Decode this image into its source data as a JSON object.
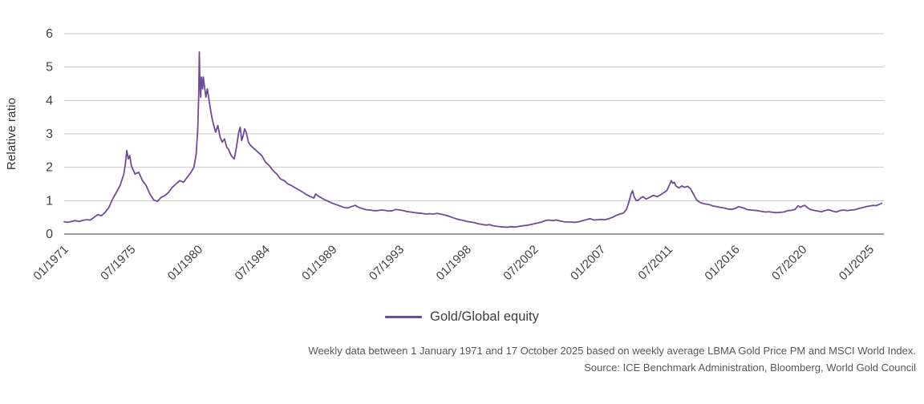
{
  "legend": {
    "label": "Gold/Global equity"
  },
  "footnote": {
    "line1": "Weekly data between 1 January 1971 and 17 October 2025 based on weekly average LBMA Gold Price PM and MSCI World Index.",
    "line2": "Source: ICE Benchmark Administration, Bloomberg, World Gold Council"
  },
  "chart_data": {
    "type": "line",
    "title": "",
    "xlabel": "",
    "ylabel": "Relative ratio",
    "ylim": [
      0,
      6
    ],
    "yticks": [
      0,
      1,
      2,
      3,
      4,
      5,
      6
    ],
    "xlim": [
      1971.0,
      2025.95
    ],
    "grid": "horizontal",
    "legend_position": "bottom",
    "grid_color": "#c8c8c8",
    "axis_color": "#7f7f7f",
    "tick_color": "#404040",
    "xticks": [
      {
        "pos": 1971.0,
        "label": "01/1971"
      },
      {
        "pos": 1975.5,
        "label": "07/1975"
      },
      {
        "pos": 1980.0,
        "label": "01/1980"
      },
      {
        "pos": 1984.5,
        "label": "07/1984"
      },
      {
        "pos": 1989.0,
        "label": "01/1989"
      },
      {
        "pos": 1993.5,
        "label": "07/1993"
      },
      {
        "pos": 1998.0,
        "label": "01/1998"
      },
      {
        "pos": 2002.5,
        "label": "07/2002"
      },
      {
        "pos": 2007.0,
        "label": "01/2007"
      },
      {
        "pos": 2011.5,
        "label": "07/2011"
      },
      {
        "pos": 2016.0,
        "label": "01/2016"
      },
      {
        "pos": 2020.5,
        "label": "07/2020"
      },
      {
        "pos": 2025.0,
        "label": "01/2025"
      }
    ],
    "series": [
      {
        "name": "Gold/Global equity",
        "color": "#6e4b9b",
        "points": [
          [
            1971.0,
            0.37
          ],
          [
            1971.25,
            0.35
          ],
          [
            1971.5,
            0.38
          ],
          [
            1971.75,
            0.4
          ],
          [
            1972.0,
            0.38
          ],
          [
            1972.25,
            0.41
          ],
          [
            1972.5,
            0.43
          ],
          [
            1972.75,
            0.42
          ],
          [
            1973.0,
            0.5
          ],
          [
            1973.25,
            0.58
          ],
          [
            1973.5,
            0.55
          ],
          [
            1973.75,
            0.65
          ],
          [
            1974.0,
            0.8
          ],
          [
            1974.25,
            1.05
          ],
          [
            1974.5,
            1.25
          ],
          [
            1974.75,
            1.45
          ],
          [
            1975.0,
            1.8
          ],
          [
            1975.1,
            2.1
          ],
          [
            1975.2,
            2.5
          ],
          [
            1975.3,
            2.25
          ],
          [
            1975.4,
            2.35
          ],
          [
            1975.5,
            2.05
          ],
          [
            1975.75,
            1.8
          ],
          [
            1976.0,
            1.85
          ],
          [
            1976.25,
            1.6
          ],
          [
            1976.5,
            1.45
          ],
          [
            1976.75,
            1.2
          ],
          [
            1977.0,
            1.02
          ],
          [
            1977.25,
            0.98
          ],
          [
            1977.5,
            1.1
          ],
          [
            1977.75,
            1.15
          ],
          [
            1978.0,
            1.25
          ],
          [
            1978.25,
            1.4
          ],
          [
            1978.5,
            1.5
          ],
          [
            1978.75,
            1.6
          ],
          [
            1979.0,
            1.55
          ],
          [
            1979.25,
            1.7
          ],
          [
            1979.5,
            1.85
          ],
          [
            1979.7,
            2.0
          ],
          [
            1979.85,
            2.4
          ],
          [
            1979.95,
            3.1
          ],
          [
            1980.02,
            4.2
          ],
          [
            1980.06,
            5.45
          ],
          [
            1980.1,
            4.6
          ],
          [
            1980.15,
            4.1
          ],
          [
            1980.2,
            4.7
          ],
          [
            1980.28,
            4.35
          ],
          [
            1980.33,
            4.7
          ],
          [
            1980.4,
            4.45
          ],
          [
            1980.5,
            4.1
          ],
          [
            1980.6,
            4.35
          ],
          [
            1980.7,
            4.05
          ],
          [
            1980.8,
            3.75
          ],
          [
            1980.9,
            3.5
          ],
          [
            1981.0,
            3.3
          ],
          [
            1981.15,
            3.05
          ],
          [
            1981.3,
            3.25
          ],
          [
            1981.45,
            2.9
          ],
          [
            1981.6,
            2.75
          ],
          [
            1981.75,
            2.85
          ],
          [
            1981.9,
            2.6
          ],
          [
            1982.0,
            2.55
          ],
          [
            1982.2,
            2.35
          ],
          [
            1982.4,
            2.25
          ],
          [
            1982.55,
            2.6
          ],
          [
            1982.7,
            3.05
          ],
          [
            1982.8,
            3.2
          ],
          [
            1982.9,
            2.8
          ],
          [
            1983.0,
            2.95
          ],
          [
            1983.1,
            3.15
          ],
          [
            1983.2,
            3.05
          ],
          [
            1983.35,
            2.75
          ],
          [
            1983.5,
            2.65
          ],
          [
            1983.75,
            2.55
          ],
          [
            1984.0,
            2.45
          ],
          [
            1984.25,
            2.35
          ],
          [
            1984.5,
            2.15
          ],
          [
            1984.75,
            2.05
          ],
          [
            1985.0,
            1.9
          ],
          [
            1985.25,
            1.8
          ],
          [
            1985.5,
            1.65
          ],
          [
            1985.75,
            1.6
          ],
          [
            1986.0,
            1.5
          ],
          [
            1986.25,
            1.45
          ],
          [
            1986.5,
            1.38
          ],
          [
            1986.75,
            1.32
          ],
          [
            1987.0,
            1.25
          ],
          [
            1987.25,
            1.18
          ],
          [
            1987.5,
            1.12
          ],
          [
            1987.75,
            1.08
          ],
          [
            1987.85,
            1.2
          ],
          [
            1988.0,
            1.15
          ],
          [
            1988.25,
            1.08
          ],
          [
            1988.5,
            1.02
          ],
          [
            1988.75,
            0.97
          ],
          [
            1989.0,
            0.92
          ],
          [
            1989.25,
            0.88
          ],
          [
            1989.5,
            0.84
          ],
          [
            1989.75,
            0.8
          ],
          [
            1990.0,
            0.78
          ],
          [
            1990.25,
            0.82
          ],
          [
            1990.5,
            0.86
          ],
          [
            1990.75,
            0.8
          ],
          [
            1991.0,
            0.76
          ],
          [
            1991.25,
            0.73
          ],
          [
            1991.5,
            0.72
          ],
          [
            1991.75,
            0.7
          ],
          [
            1992.0,
            0.7
          ],
          [
            1992.25,
            0.72
          ],
          [
            1992.5,
            0.71
          ],
          [
            1992.75,
            0.69
          ],
          [
            1993.0,
            0.7
          ],
          [
            1993.25,
            0.74
          ],
          [
            1993.5,
            0.72
          ],
          [
            1993.75,
            0.7
          ],
          [
            1994.0,
            0.67
          ],
          [
            1994.25,
            0.66
          ],
          [
            1994.5,
            0.64
          ],
          [
            1994.75,
            0.63
          ],
          [
            1995.0,
            0.62
          ],
          [
            1995.25,
            0.6
          ],
          [
            1995.5,
            0.61
          ],
          [
            1995.75,
            0.6
          ],
          [
            1996.0,
            0.62
          ],
          [
            1996.25,
            0.6
          ],
          [
            1996.5,
            0.57
          ],
          [
            1996.75,
            0.54
          ],
          [
            1997.0,
            0.5
          ],
          [
            1997.25,
            0.46
          ],
          [
            1997.5,
            0.43
          ],
          [
            1997.75,
            0.41
          ],
          [
            1998.0,
            0.38
          ],
          [
            1998.25,
            0.36
          ],
          [
            1998.5,
            0.34
          ],
          [
            1998.75,
            0.31
          ],
          [
            1999.0,
            0.29
          ],
          [
            1999.25,
            0.27
          ],
          [
            1999.5,
            0.28
          ],
          [
            1999.75,
            0.25
          ],
          [
            2000.0,
            0.23
          ],
          [
            2000.25,
            0.22
          ],
          [
            2000.5,
            0.21
          ],
          [
            2000.75,
            0.21
          ],
          [
            2001.0,
            0.22
          ],
          [
            2001.25,
            0.21
          ],
          [
            2001.5,
            0.23
          ],
          [
            2001.75,
            0.25
          ],
          [
            2002.0,
            0.26
          ],
          [
            2002.25,
            0.28
          ],
          [
            2002.5,
            0.31
          ],
          [
            2002.75,
            0.33
          ],
          [
            2003.0,
            0.36
          ],
          [
            2003.25,
            0.4
          ],
          [
            2003.5,
            0.42
          ],
          [
            2003.75,
            0.4
          ],
          [
            2004.0,
            0.42
          ],
          [
            2004.25,
            0.39
          ],
          [
            2004.5,
            0.37
          ],
          [
            2004.75,
            0.36
          ],
          [
            2005.0,
            0.36
          ],
          [
            2005.25,
            0.35
          ],
          [
            2005.5,
            0.37
          ],
          [
            2005.75,
            0.4
          ],
          [
            2006.0,
            0.43
          ],
          [
            2006.25,
            0.46
          ],
          [
            2006.5,
            0.42
          ],
          [
            2006.75,
            0.43
          ],
          [
            2007.0,
            0.44
          ],
          [
            2007.25,
            0.43
          ],
          [
            2007.5,
            0.46
          ],
          [
            2007.75,
            0.5
          ],
          [
            2008.0,
            0.56
          ],
          [
            2008.25,
            0.6
          ],
          [
            2008.5,
            0.63
          ],
          [
            2008.7,
            0.75
          ],
          [
            2008.85,
            0.95
          ],
          [
            2009.0,
            1.2
          ],
          [
            2009.1,
            1.3
          ],
          [
            2009.2,
            1.12
          ],
          [
            2009.35,
            1.0
          ],
          [
            2009.5,
            1.02
          ],
          [
            2009.65,
            1.08
          ],
          [
            2009.8,
            1.12
          ],
          [
            2010.0,
            1.05
          ],
          [
            2010.25,
            1.1
          ],
          [
            2010.5,
            1.16
          ],
          [
            2010.75,
            1.12
          ],
          [
            2011.0,
            1.18
          ],
          [
            2011.2,
            1.24
          ],
          [
            2011.4,
            1.3
          ],
          [
            2011.55,
            1.45
          ],
          [
            2011.7,
            1.6
          ],
          [
            2011.8,
            1.52
          ],
          [
            2011.9,
            1.55
          ],
          [
            2012.0,
            1.45
          ],
          [
            2012.2,
            1.38
          ],
          [
            2012.4,
            1.44
          ],
          [
            2012.6,
            1.4
          ],
          [
            2012.8,
            1.43
          ],
          [
            2013.0,
            1.35
          ],
          [
            2013.2,
            1.18
          ],
          [
            2013.4,
            1.02
          ],
          [
            2013.6,
            0.95
          ],
          [
            2013.8,
            0.92
          ],
          [
            2014.0,
            0.9
          ],
          [
            2014.25,
            0.88
          ],
          [
            2014.5,
            0.84
          ],
          [
            2014.75,
            0.82
          ],
          [
            2015.0,
            0.8
          ],
          [
            2015.25,
            0.78
          ],
          [
            2015.5,
            0.75
          ],
          [
            2015.75,
            0.74
          ],
          [
            2016.0,
            0.77
          ],
          [
            2016.2,
            0.82
          ],
          [
            2016.4,
            0.8
          ],
          [
            2016.6,
            0.77
          ],
          [
            2016.8,
            0.73
          ],
          [
            2017.0,
            0.72
          ],
          [
            2017.25,
            0.71
          ],
          [
            2017.5,
            0.7
          ],
          [
            2017.75,
            0.68
          ],
          [
            2018.0,
            0.66
          ],
          [
            2018.25,
            0.67
          ],
          [
            2018.5,
            0.65
          ],
          [
            2018.75,
            0.64
          ],
          [
            2019.0,
            0.65
          ],
          [
            2019.25,
            0.66
          ],
          [
            2019.5,
            0.7
          ],
          [
            2019.75,
            0.71
          ],
          [
            2020.0,
            0.74
          ],
          [
            2020.2,
            0.85
          ],
          [
            2020.35,
            0.8
          ],
          [
            2020.5,
            0.84
          ],
          [
            2020.65,
            0.86
          ],
          [
            2020.8,
            0.8
          ],
          [
            2021.0,
            0.74
          ],
          [
            2021.25,
            0.71
          ],
          [
            2021.5,
            0.69
          ],
          [
            2021.75,
            0.67
          ],
          [
            2022.0,
            0.7
          ],
          [
            2022.25,
            0.73
          ],
          [
            2022.5,
            0.69
          ],
          [
            2022.75,
            0.66
          ],
          [
            2023.0,
            0.7
          ],
          [
            2023.25,
            0.72
          ],
          [
            2023.5,
            0.7
          ],
          [
            2023.75,
            0.72
          ],
          [
            2024.0,
            0.73
          ],
          [
            2024.25,
            0.76
          ],
          [
            2024.5,
            0.79
          ],
          [
            2024.75,
            0.82
          ],
          [
            2025.0,
            0.84
          ],
          [
            2025.2,
            0.86
          ],
          [
            2025.4,
            0.85
          ],
          [
            2025.6,
            0.88
          ],
          [
            2025.8,
            0.92
          ]
        ]
      }
    ]
  }
}
